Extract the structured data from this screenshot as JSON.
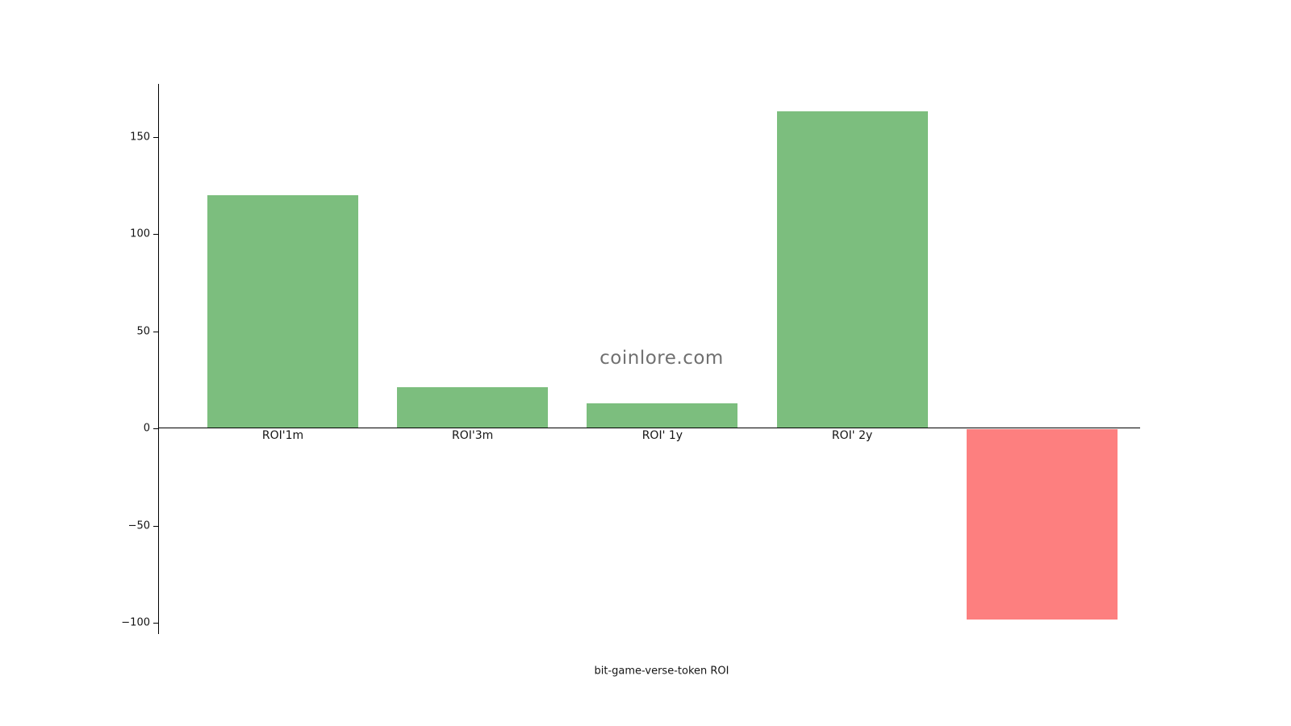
{
  "watermark": {
    "text": "coinlore.com",
    "color": "#707070"
  },
  "chart_data": {
    "type": "bar",
    "title": "bit-game-verse-token ROI",
    "xlabel": "",
    "ylabel": "",
    "categories": [
      "ROI'1m",
      "ROI'3m",
      "ROI' 1y",
      "ROI' 2y",
      ""
    ],
    "values": [
      120,
      21,
      13,
      163,
      -98
    ],
    "bar_colors": {
      "positive": "#7cbe7e",
      "negative": "#fd7f7f"
    },
    "yticks": [
      {
        "value": 150,
        "label": "150"
      },
      {
        "value": 100,
        "label": "100"
      },
      {
        "value": 50,
        "label": "50"
      },
      {
        "value": 0,
        "label": "0"
      },
      {
        "value": -50,
        "label": "−50"
      },
      {
        "value": -100,
        "label": "−100"
      }
    ],
    "ylim": [
      -106,
      177
    ],
    "grid": false,
    "legend": "none"
  }
}
